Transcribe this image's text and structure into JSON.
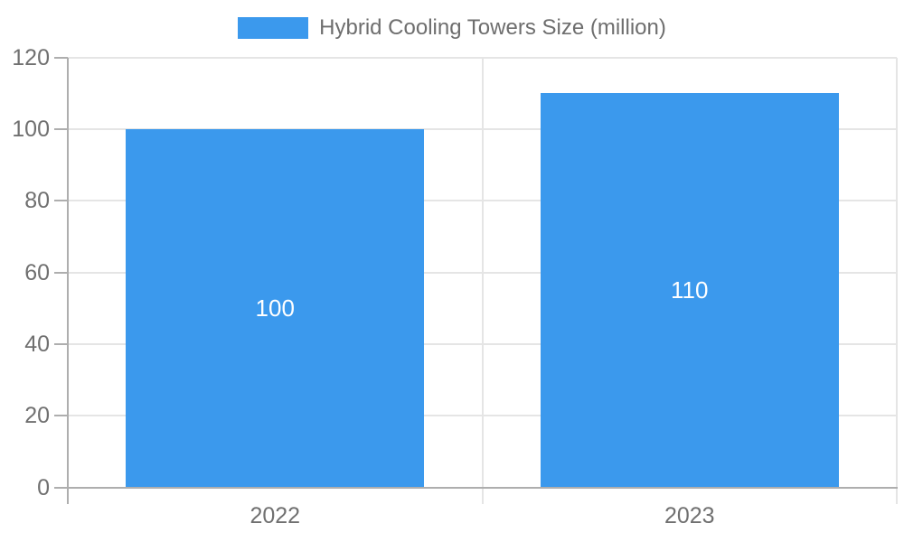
{
  "chart_data": {
    "type": "bar",
    "title": "Hybrid Cooling Towers Size (million)",
    "legend": {
      "label": "Hybrid Cooling Towers Size (million)",
      "position": "top"
    },
    "categories": [
      "2022",
      "2023"
    ],
    "series": [
      {
        "name": "Hybrid Cooling Towers Size (million)",
        "values": [
          100,
          110
        ]
      }
    ],
    "value_labels": [
      "100",
      "110"
    ],
    "value_labels_position": "inside-center",
    "xlabel": "",
    "ylabel": "",
    "ylim": [
      0,
      120
    ],
    "yticks": [
      0,
      20,
      40,
      60,
      80,
      100,
      120
    ],
    "grid": true,
    "legend_position": "top-center",
    "colors": {
      "bar": "#3B99ED",
      "value_label": "#ffffff",
      "grid_line": "#e5e5e5",
      "axis_line": "#aeaeae",
      "tick_label": "#707070",
      "legend_label": "#6e6e6e",
      "background": "#ffffff"
    }
  }
}
